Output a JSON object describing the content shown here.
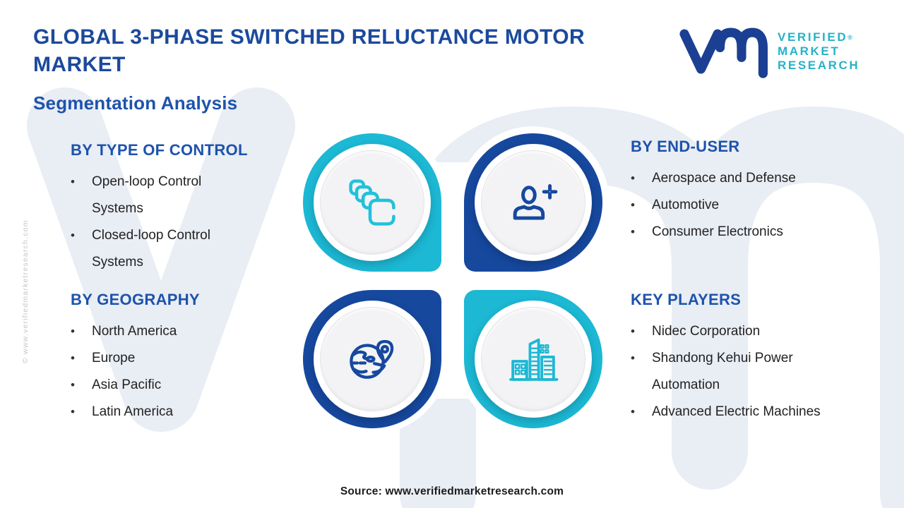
{
  "page": {
    "title": "GLOBAL 3-PHASE SWITCHED RELUCTANCE MOTOR MARKET",
    "title_lines": [
      "GLOBAL 3-PHASE SWITCHED RELUCTANCE MOTOR",
      "MARKET"
    ],
    "subtitle": "Segmentation Analysis",
    "source": "Source: www.verifiedmarketresearch.com",
    "side_copyright": "© www.verifiedmarketresearch.com",
    "bullet_glyph": "•"
  },
  "logo": {
    "monogram": "vm",
    "lines": [
      "VERIFIED",
      "MARKET",
      "RESEARCH"
    ],
    "registered": "®"
  },
  "sections": {
    "type_of_control": {
      "heading": "BY TYPE OF CONTROL",
      "items": [
        {
          "text": "Open-loop Control Systems",
          "lines": [
            "Open-loop Control",
            "Systems"
          ]
        },
        {
          "text": "Closed-loop Control Systems",
          "lines": [
            "Closed-loop Control",
            "Systems"
          ]
        }
      ]
    },
    "geography": {
      "heading": "BY GEOGRAPHY",
      "items": [
        {
          "text": "North America",
          "lines": [
            "North America"
          ]
        },
        {
          "text": "Europe",
          "lines": [
            "Europe"
          ]
        },
        {
          "text": "Asia Pacific",
          "lines": [
            "Asia Pacific"
          ]
        },
        {
          "text": "Latin America",
          "lines": [
            "Latin America"
          ]
        }
      ]
    },
    "end_user": {
      "heading": "BY END-USER",
      "items": [
        {
          "text": "Aerospace and Defense",
          "lines": [
            "Aerospace and Defense"
          ]
        },
        {
          "text": "Automotive",
          "lines": [
            "Automotive"
          ]
        },
        {
          "text": "Consumer Electronics",
          "lines": [
            "Consumer Electronics"
          ]
        }
      ]
    },
    "key_players": {
      "heading": "KEY PLAYERS",
      "items": [
        {
          "text": "Nidec Corporation",
          "lines": [
            "Nidec Corporation"
          ]
        },
        {
          "text": "Shandong Kehui Power Automation",
          "lines": [
            "Shandong Kehui Power",
            "Automation"
          ]
        },
        {
          "text": "Advanced Electric Machines",
          "lines": [
            "Advanced Electric Machines"
          ]
        }
      ]
    }
  },
  "quadrants": [
    {
      "position": "top-left",
      "icon": "stacked-squares-icon",
      "ring_color": "#1cb8d4",
      "icon_color": "#22c1da"
    },
    {
      "position": "top-right",
      "icon": "person-plus-icon",
      "ring_color": "#16489e",
      "icon_color": "#16489e"
    },
    {
      "position": "bottom-left",
      "icon": "globe-location-pin-icon",
      "ring_color": "#16489e",
      "icon_color": "#16489e"
    },
    {
      "position": "bottom-right",
      "icon": "city-buildings-icon",
      "ring_color": "#1cb8d4",
      "icon_color": "#1cb8d4"
    }
  ],
  "colors": {
    "title_navy": "#1b4a9c",
    "heading_blue": "#1d53ac",
    "body_text": "#222222",
    "watermark": "#e9edf4",
    "source_text": "#1c1c1c",
    "copyright_gray": "#c4c6ca",
    "logo_blue": "#1b3f92",
    "logo_teal": "#27b2c6"
  }
}
